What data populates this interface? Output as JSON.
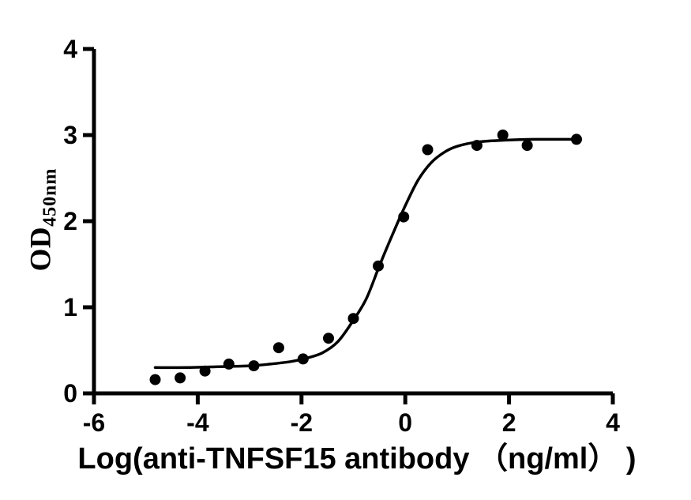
{
  "chart_data": {
    "type": "scatter",
    "title": "",
    "xlabel": "Log(anti-TNFSF15 antibody （ng/ml） )",
    "ylabel": "OD450nm",
    "ylabel_main": "OD",
    "ylabel_sub": "450nm",
    "xlim": [
      -6,
      4
    ],
    "ylim": [
      0,
      4
    ],
    "x_ticks": [
      -6,
      -4,
      -2,
      0,
      2,
      4
    ],
    "y_ticks": [
      0,
      1,
      2,
      3,
      4
    ],
    "grid": false,
    "legend_position": "none",
    "colors": {
      "points": "#000000",
      "curve": "#000000",
      "axis": "#000000",
      "text": "#000000",
      "background": "#ffffff"
    },
    "marker": {
      "shape": "circle",
      "radius_px": 7
    },
    "points": [
      [
        -4.82,
        0.16
      ],
      [
        -4.34,
        0.18
      ],
      [
        -3.86,
        0.26
      ],
      [
        -3.4,
        0.34
      ],
      [
        -2.92,
        0.32
      ],
      [
        -2.44,
        0.53
      ],
      [
        -1.97,
        0.4
      ],
      [
        -1.48,
        0.64
      ],
      [
        -1.0,
        0.87
      ],
      [
        -0.52,
        1.48
      ],
      [
        -0.03,
        2.05
      ],
      [
        0.43,
        2.83
      ],
      [
        1.38,
        2.88
      ],
      [
        1.88,
        3.0
      ],
      [
        2.35,
        2.88
      ],
      [
        3.3,
        2.95
      ]
    ],
    "fit_curve": {
      "description": "4PL sigmoidal fit",
      "bottom": 0.3,
      "top": 2.95,
      "samples": [
        [
          -4.82,
          0.3
        ],
        [
          -4.2,
          0.3
        ],
        [
          -3.6,
          0.31
        ],
        [
          -3.0,
          0.32
        ],
        [
          -2.6,
          0.34
        ],
        [
          -2.2,
          0.37
        ],
        [
          -1.9,
          0.41
        ],
        [
          -1.6,
          0.47
        ],
        [
          -1.3,
          0.6
        ],
        [
          -1.0,
          0.85
        ],
        [
          -0.75,
          1.1
        ],
        [
          -0.5,
          1.48
        ],
        [
          -0.25,
          1.84
        ],
        [
          0.0,
          2.18
        ],
        [
          0.25,
          2.48
        ],
        [
          0.5,
          2.68
        ],
        [
          0.75,
          2.8
        ],
        [
          1.0,
          2.87
        ],
        [
          1.4,
          2.92
        ],
        [
          1.9,
          2.94
        ],
        [
          2.5,
          2.95
        ],
        [
          3.3,
          2.95
        ]
      ]
    }
  }
}
